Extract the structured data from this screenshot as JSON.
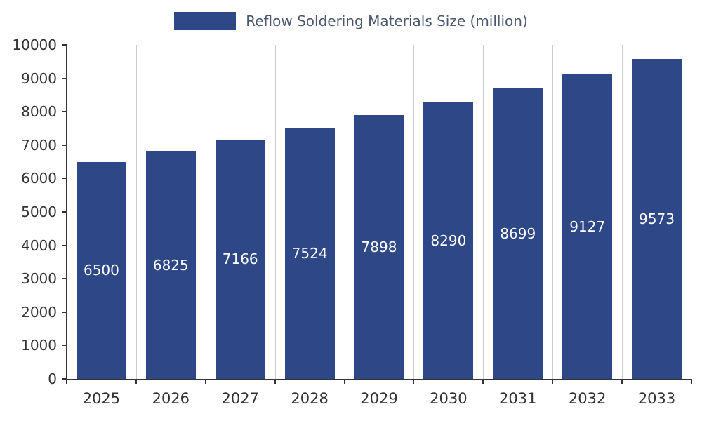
{
  "legend": {
    "label": "Reflow Soldering Materials Size (million)"
  },
  "chart_data": {
    "type": "bar",
    "title": "Reflow Soldering Materials Size (million)",
    "categories": [
      "2025",
      "2026",
      "2027",
      "2028",
      "2029",
      "2030",
      "2031",
      "2032",
      "2033"
    ],
    "values": [
      6500,
      6825,
      7166,
      7524,
      7898,
      8290,
      8699,
      9127,
      9573
    ],
    "xlabel": "",
    "ylabel": "",
    "ylim": [
      0,
      10000
    ],
    "ytick_step": 1000,
    "grid": "vertical",
    "legend_position": "top",
    "bar_color": "#2e4786",
    "value_label_color": "#ffffff",
    "axis_color": "#333333",
    "gridline_color": "#cccccc"
  }
}
